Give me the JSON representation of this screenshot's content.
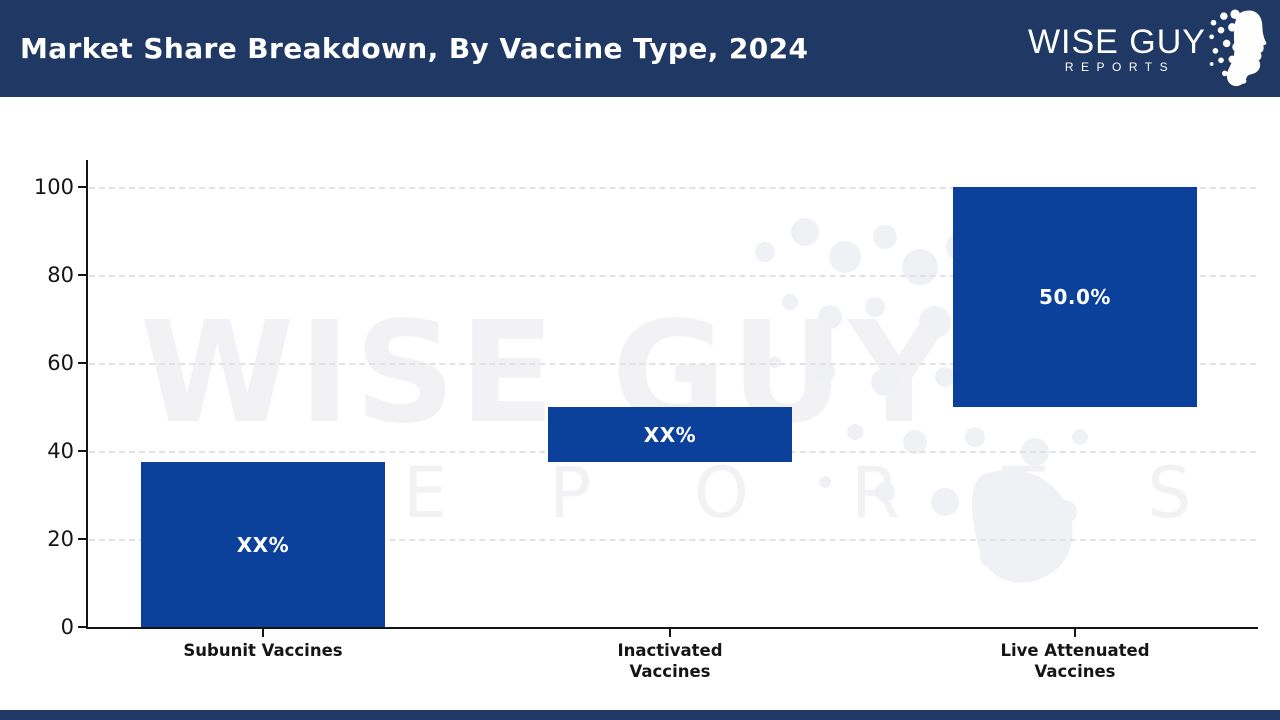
{
  "header": {
    "title": "Market Share Breakdown, By Vaccine Type, 2024",
    "bg_color": "#203864",
    "logo": {
      "line1": "WISE GUY",
      "line2": "REPORTS"
    }
  },
  "watermark": {
    "line1": "WISE GUY",
    "line2": "R E P O R T S"
  },
  "chart_data": {
    "type": "bar",
    "subtype": "waterfall-breakdown",
    "title": "Market Share Breakdown, By Vaccine Type, 2024",
    "categories": [
      "Subunit Vaccines",
      "Inactivated\nVaccines",
      "Live Attenuated\nVaccines"
    ],
    "segments": [
      {
        "category": "Subunit Vaccines",
        "start": 0,
        "end": 37.5,
        "label": "XX%"
      },
      {
        "category": "Inactivated Vaccines",
        "start": 37.5,
        "end": 50,
        "label": "XX%"
      },
      {
        "category": "Live Attenuated Vaccines",
        "start": 50,
        "end": 100,
        "label": "50.0%"
      }
    ],
    "yticks": [
      0,
      20,
      40,
      60,
      80,
      100
    ],
    "ylim": [
      0,
      106
    ],
    "xlabel": "",
    "ylabel": "",
    "bar_color": "#0B409B",
    "grid": "horizontal-dashed",
    "legend": "none"
  }
}
